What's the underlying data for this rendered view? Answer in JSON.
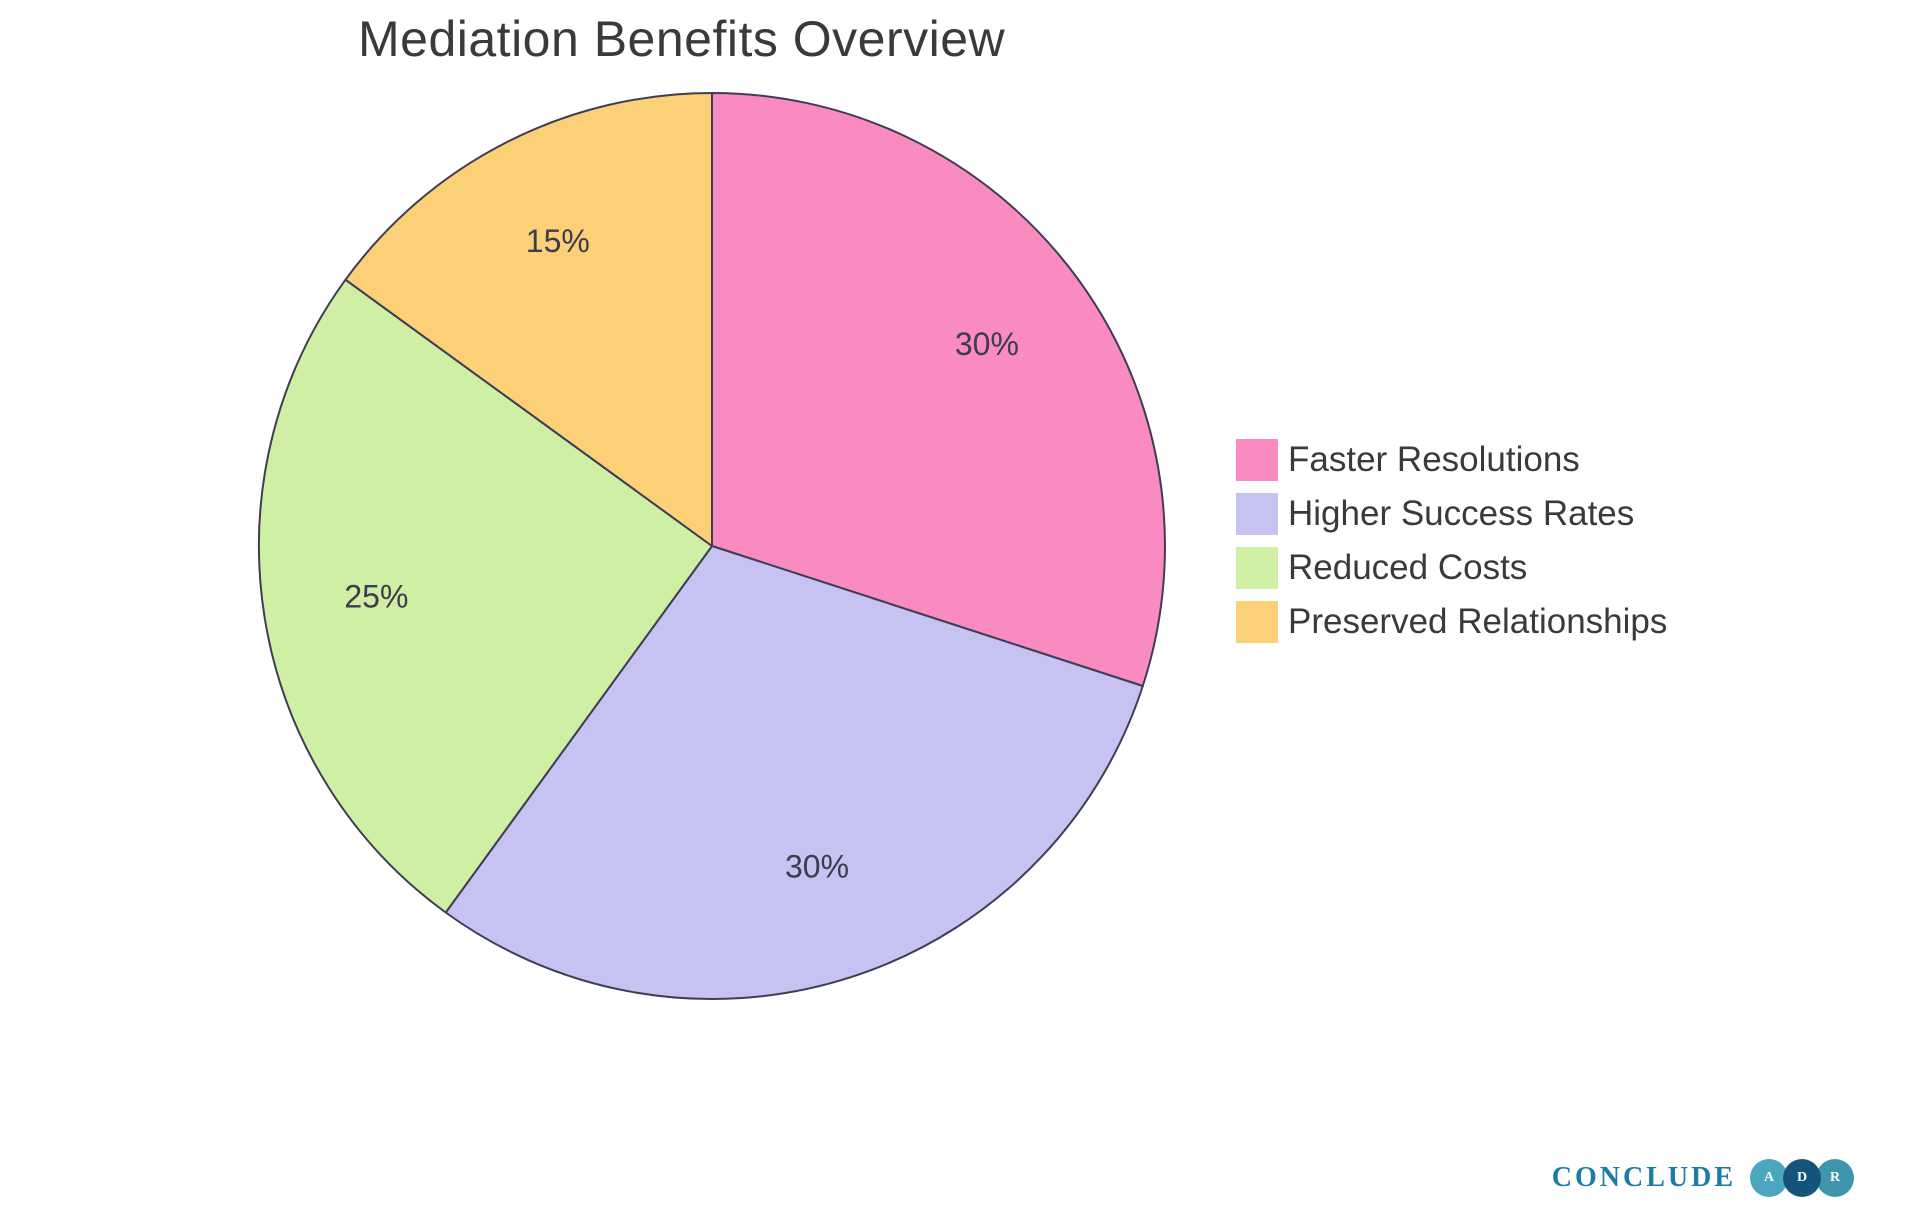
{
  "chart_data": {
    "type": "pie",
    "title": "Mediation Benefits Overview",
    "labels": [
      "Faster Resolutions",
      "Higher Success Rates",
      "Reduced Costs",
      "Preserved Relationships"
    ],
    "values": [
      30,
      30,
      25,
      15
    ],
    "value_labels": [
      "30%",
      "30%",
      "25%",
      "15%"
    ],
    "colors": [
      "#F98BC1",
      "#C6C2F2",
      "#CFF0A4",
      "#FBD077"
    ],
    "outline_color": "#3F3D56",
    "start_angle_deg": 0,
    "direction": "clockwise",
    "legend_position": "right",
    "background": "#FFFFFF"
  },
  "branding": {
    "wordmark": "CONCLUDE",
    "wordmark_color": "#1D7CA6",
    "badges": [
      {
        "letter": "A",
        "color": "#4BA7BE"
      },
      {
        "letter": "D",
        "color": "#14537A"
      },
      {
        "letter": "R",
        "color": "#3E96AD"
      }
    ]
  }
}
